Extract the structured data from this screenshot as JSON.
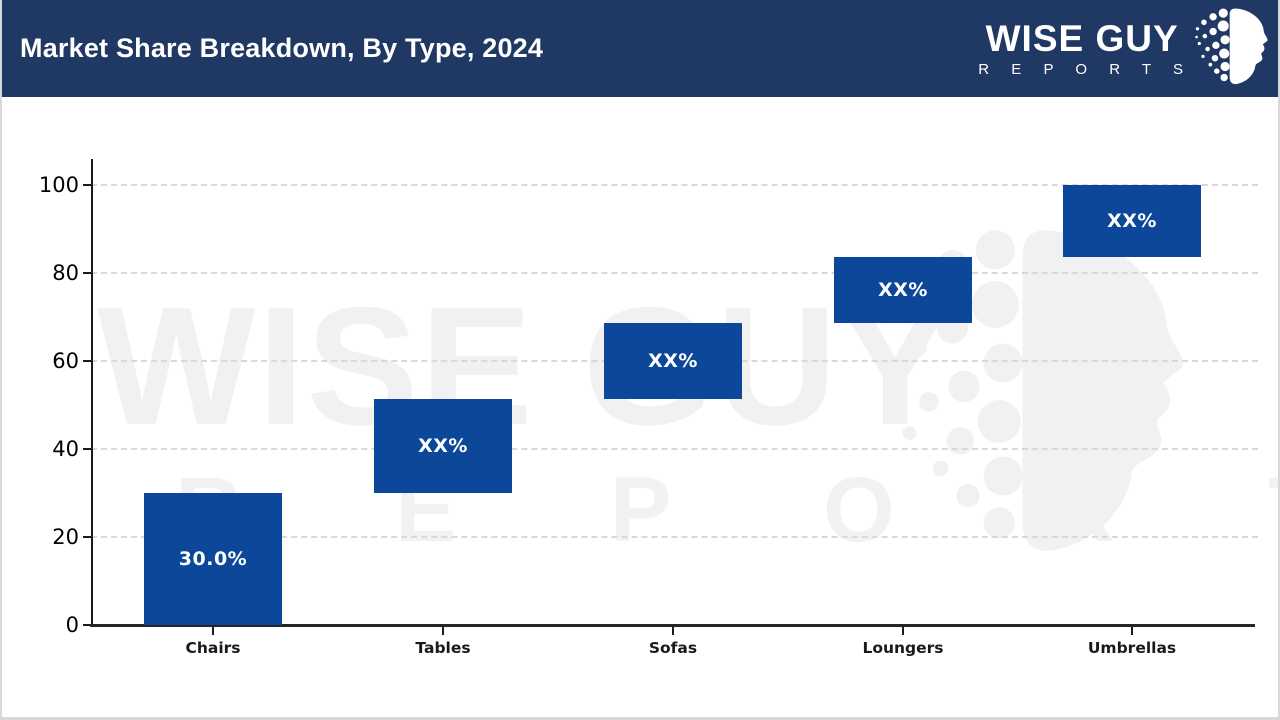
{
  "header": {
    "title": "Market Share Breakdown, By Type, 2024",
    "logo": {
      "line1": "WISE GUY",
      "line2": "R E P O R T S"
    }
  },
  "watermark": {
    "line1": "WISE GUY",
    "line2": "R E P O R T S"
  },
  "chart_data": {
    "type": "bar",
    "subtype": "waterfall",
    "title": "Market Share Breakdown, By Type, 2024",
    "categories": [
      "Chairs",
      "Tables",
      "Sofas",
      "Loungers",
      "Umbrellas"
    ],
    "segments": [
      {
        "category": "Chairs",
        "start": 0,
        "end": 30,
        "value": 30.0,
        "label": "30.0%"
      },
      {
        "category": "Tables",
        "start": 30,
        "end": 51.3,
        "value": 21.3,
        "label": "XX%"
      },
      {
        "category": "Sofas",
        "start": 51.3,
        "end": 68.6,
        "value": 17.3,
        "label": "XX%"
      },
      {
        "category": "Loungers",
        "start": 68.6,
        "end": 83.6,
        "value": 15.0,
        "label": "XX%"
      },
      {
        "category": "Umbrellas",
        "start": 83.6,
        "end": 100,
        "value": 16.4,
        "label": "XX%"
      }
    ],
    "yticks": [
      0,
      20,
      40,
      60,
      80,
      100
    ],
    "ylim": [
      0,
      105
    ],
    "xlabel": "",
    "ylabel": "",
    "grid": "horizontal-dashed",
    "legend": "none",
    "bar_color": "#0d4799",
    "bar_label_color": "#ffffff"
  },
  "colors": {
    "header_bg": "#203864",
    "bar": "#0d4799",
    "axis": "#1a1a1a",
    "gridline": "#d9d9d9",
    "watermark": "#f1f1f1",
    "background": "#ffffff",
    "border": "#d9d9d9"
  }
}
